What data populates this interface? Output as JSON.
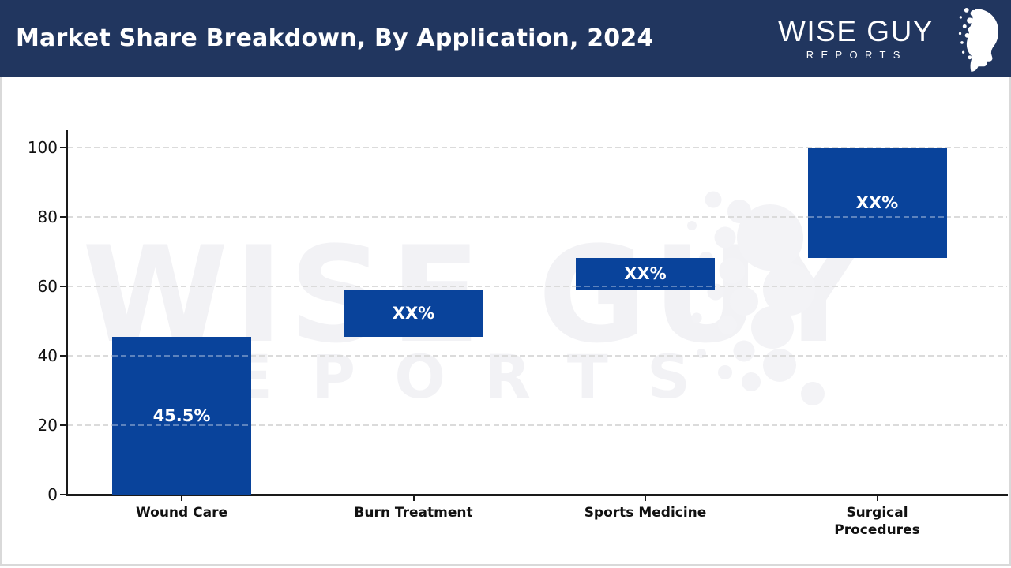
{
  "header": {
    "title": "Market Share Breakdown, By Application, 2024",
    "logo": {
      "wordmark": "WISE GUY",
      "subtext": "REPORTS"
    }
  },
  "watermark": {
    "wordmark": "WISE GUY",
    "subtext": "REPORTS"
  },
  "chart_data": {
    "type": "bar",
    "subtype": "waterfall",
    "title": "Market Share Breakdown, By Application, 2024",
    "categories": [
      "Wound Care",
      "Burn Treatment",
      "Sports Medicine",
      "Surgical\nProcedures"
    ],
    "segments": [
      {
        "category": "Wound Care",
        "start": 0,
        "end": 45.5,
        "label": "45.5%"
      },
      {
        "category": "Burn Treatment",
        "start": 45.5,
        "end": 59.1,
        "label": "XX%"
      },
      {
        "category": "Sports Medicine",
        "start": 59.1,
        "end": 68.2,
        "label": "XX%"
      },
      {
        "category": "Surgical Procedures",
        "start": 68.2,
        "end": 100,
        "label": "XX%"
      }
    ],
    "yticks": [
      0,
      20,
      40,
      60,
      80,
      100
    ],
    "ylim": [
      0,
      105
    ],
    "xlabel": "",
    "ylabel": "",
    "grid": "horizontal-dashed",
    "legend": "none",
    "colors": {
      "bar": "#09439B",
      "bar_label": "#FFFFFF",
      "grid": "#DBDBDB",
      "axis": "#1A1A1A",
      "header_bg": "#21365F",
      "watermark": "#F2F2F5"
    }
  }
}
